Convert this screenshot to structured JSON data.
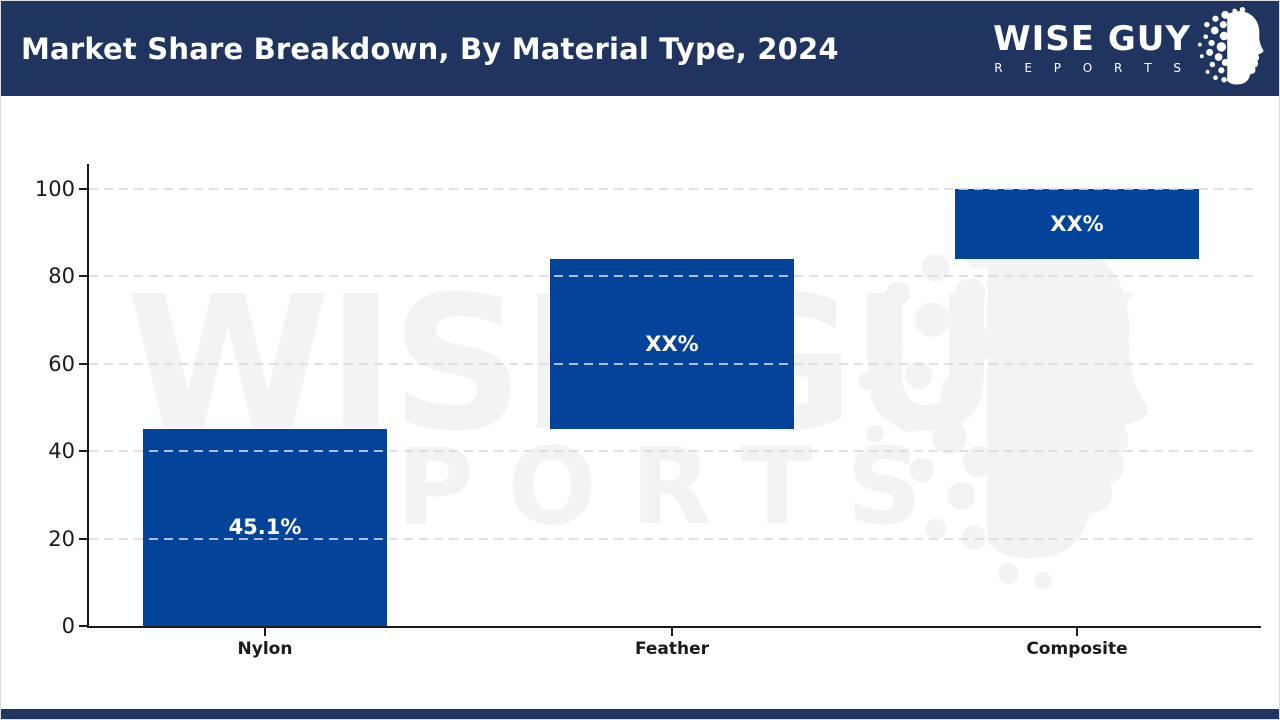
{
  "header": {
    "title": "Market Share Breakdown, By Material Type, 2024",
    "brand": {
      "line1": "WISE GUY",
      "line2": "R E P O R T S"
    }
  },
  "watermark": {
    "line1": "WISE GUY",
    "line2": "REPORTS"
  },
  "footer": {},
  "chart_data": {
    "type": "bar",
    "subtype": "waterfall-floating-bars",
    "title": "Market Share Breakdown, By Material Type, 2024",
    "categories": [
      "Nylon",
      "Feather",
      "Composite"
    ],
    "segments": [
      {
        "category": "Nylon",
        "label": "45.1%",
        "start": 0,
        "end": 45.1
      },
      {
        "category": "Feather",
        "label": "XX%",
        "start": 45.1,
        "end": 83.9
      },
      {
        "category": "Composite",
        "label": "XX%",
        "start": 83.9,
        "end": 100
      }
    ],
    "yticks": [
      0,
      20,
      40,
      60,
      80,
      100
    ],
    "ylim": [
      0,
      105.5
    ],
    "xlabel": "",
    "ylabel": "",
    "legend": "none",
    "grid": "horizontal-dashed",
    "bar_color": "#04439a",
    "label_color": "#ffffff",
    "axis_color": "#1a1a1a",
    "header_color": "#1f355f"
  }
}
